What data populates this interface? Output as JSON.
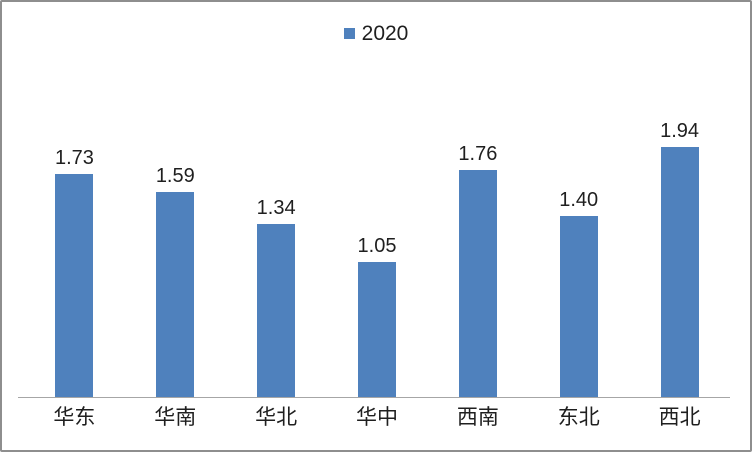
{
  "chart_data": {
    "type": "bar",
    "categories": [
      "华东",
      "华南",
      "华北",
      "华中",
      "西南",
      "东北",
      "西北"
    ],
    "series": [
      {
        "name": "2020",
        "values": [
          1.73,
          1.59,
          1.34,
          1.05,
          1.76,
          1.4,
          1.94
        ]
      }
    ],
    "value_labels": [
      "1.73",
      "1.59",
      "1.34",
      "1.05",
      "1.76",
      "1.40",
      "1.94"
    ],
    "title": "",
    "xlabel": "",
    "ylabel": "",
    "ylim": [
      0,
      2.62
    ],
    "grid": false,
    "legend_position": "top-center",
    "bar_color": "#4f81bd",
    "axis_line_color": "#a6a6a6",
    "border_color": "#8e8e8e",
    "text_color": "#1f1f1f"
  }
}
